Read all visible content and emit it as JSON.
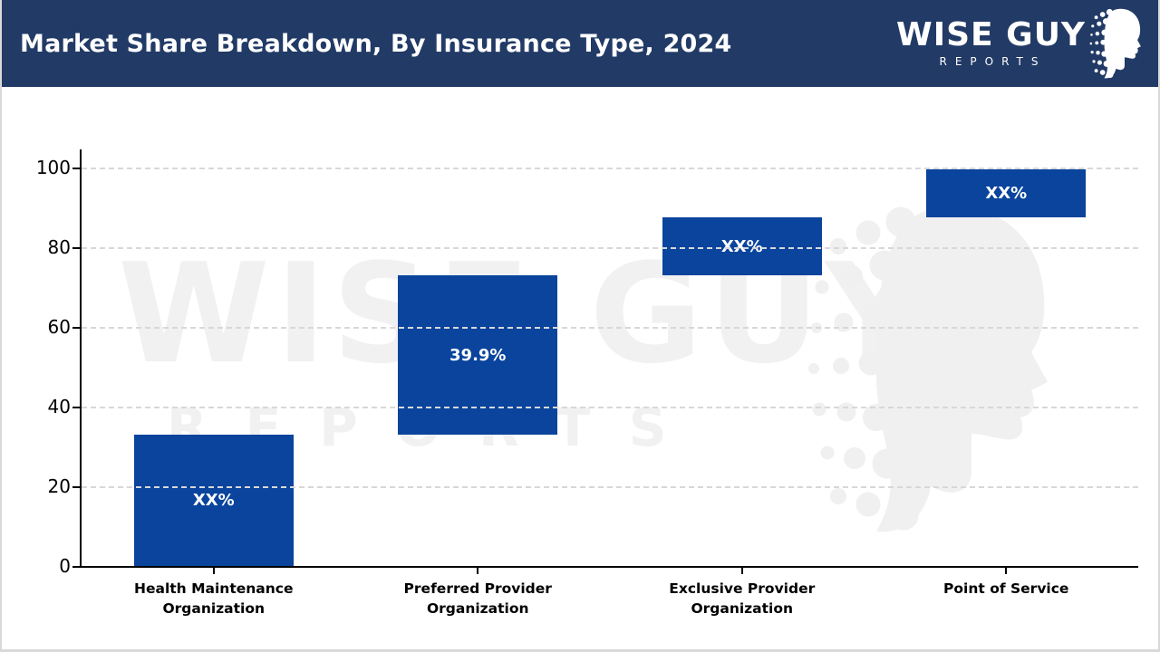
{
  "header": {
    "title": "Market Share Breakdown, By Insurance Type, 2024",
    "logo": {
      "line1": "WISE GUY",
      "line2": "REPORTS"
    }
  },
  "watermark": {
    "line1": "WISE GUY",
    "line2": "REPORTS"
  },
  "colors": {
    "header_bg": "#223a66",
    "bar": "#0a449c",
    "gridline": "#d8d8d8",
    "axis": "#000000",
    "bar_label_text": "#ffffff",
    "watermark": "#f1f1f1"
  },
  "chart_data": {
    "type": "bar",
    "subtype": "waterfall-floating-bars",
    "title": "Market Share Breakdown, By Insurance Type, 2024",
    "categories": [
      "Health Maintenance\nOrganization",
      "Preferred Provider\nOrganization",
      "Exclusive Provider\nOrganization",
      "Point of Service"
    ],
    "bars": [
      {
        "label": "XX%",
        "start": 0,
        "end": 33.2,
        "value_est": 33.2
      },
      {
        "label": "39.9%",
        "start": 33.2,
        "end": 73.1,
        "value_est": 39.9
      },
      {
        "label": "XX%",
        "start": 73.1,
        "end": 87.8,
        "value_est": 14.7
      },
      {
        "label": "XX%",
        "start": 87.8,
        "end": 99.7,
        "value_est": 11.9
      }
    ],
    "ylim": [
      0,
      100
    ],
    "yticks": [
      0,
      20,
      40,
      60,
      80,
      100
    ],
    "grid": "horizontal-dashed, drawn above bars",
    "legend": "none",
    "bar_color": "#0a449c"
  }
}
